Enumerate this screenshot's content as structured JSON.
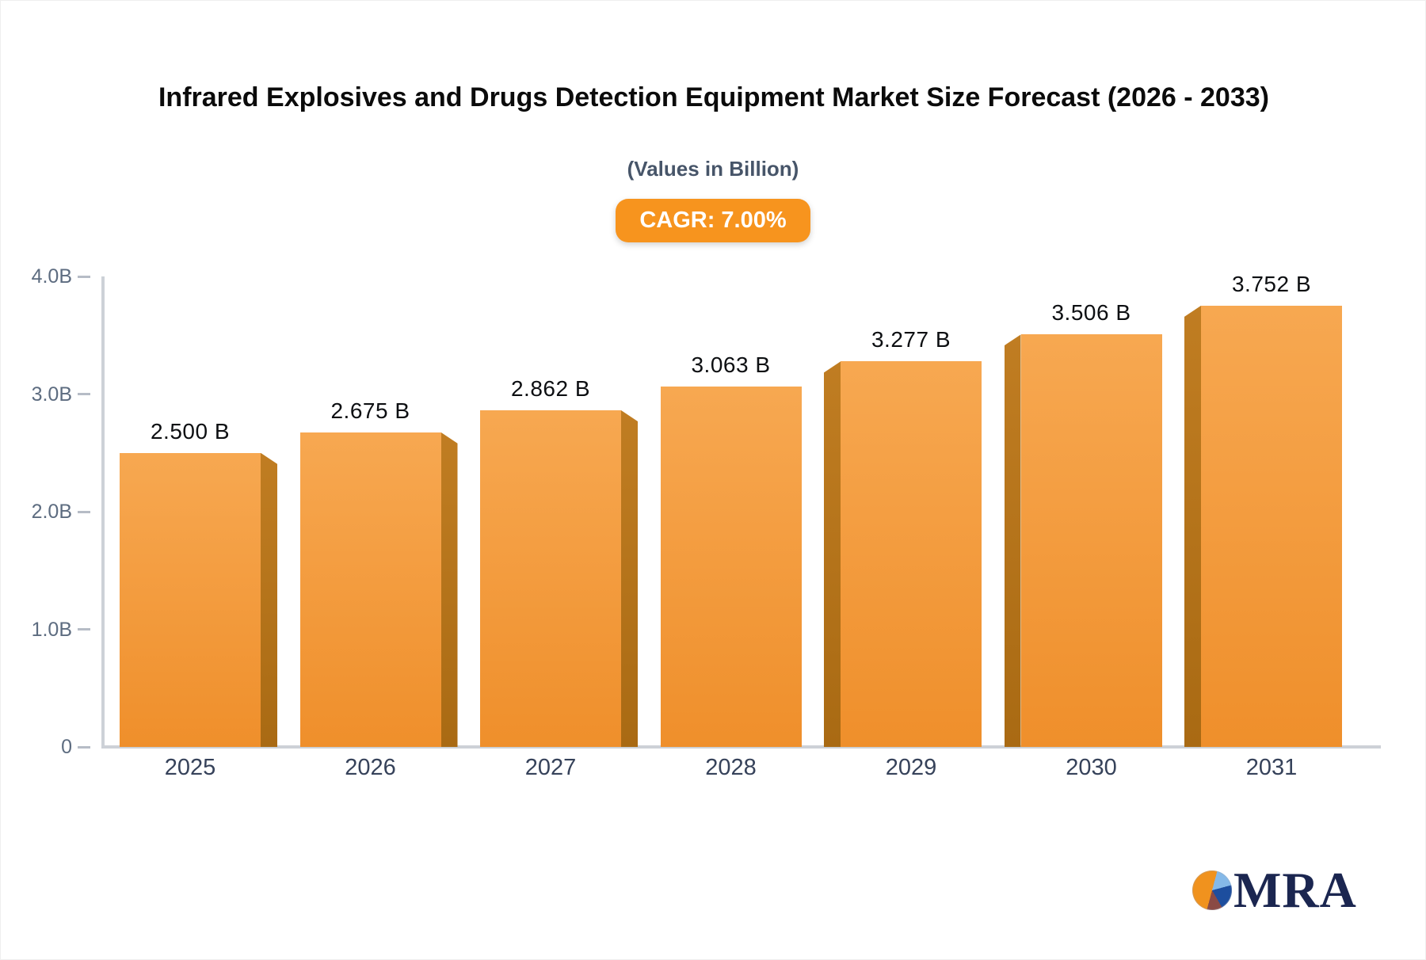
{
  "header": {
    "title": "Infrared Explosives and Drugs Detection Equipment Market Size Forecast (2026 - 2033)",
    "subtitle": "(Values in Billion)",
    "cagr_label": "CAGR: 7.00%"
  },
  "logo": {
    "text": "MRA"
  },
  "colors": {
    "bar_face_top": "#f7a851",
    "bar_face_bottom": "#ef8f2b",
    "bar_side": "#b0701c",
    "badge_bg": "#f7941e",
    "badge_text": "#ffffff",
    "axis_line": "#cdd1d7",
    "y_tick_label": "#5d6c80",
    "x_category_label": "#36425a",
    "value_label": "#0d0f12",
    "subtitle": "#475569",
    "logo_navy": "#1b2650",
    "logo_orange": "#f0921e",
    "logo_lightblue": "#85b9e8",
    "logo_darkblue": "#1d4e9e",
    "logo_maroon": "#8a4a45"
  },
  "chart_data": {
    "type": "bar",
    "title": "Infrared Explosives and Drugs Detection Equipment Market Size Forecast (2026 - 2033)",
    "subtitle": "(Values in Billion)",
    "cagr": "7.00%",
    "unit": "Billion USD",
    "categories": [
      "2025",
      "2026",
      "2027",
      "2028",
      "2029",
      "2030",
      "2031"
    ],
    "values": [
      2.5,
      2.675,
      2.862,
      3.063,
      3.277,
      3.506,
      3.752
    ],
    "value_labels": [
      "2.500 B",
      "2.675 B",
      "2.862 B",
      "3.063 B",
      "3.277 B",
      "3.506 B",
      "3.752 B"
    ],
    "y_ticks": [
      {
        "label": "4.0B",
        "value": 4.0
      },
      {
        "label": "3.0B",
        "value": 3.0
      },
      {
        "label": "2.0B",
        "value": 2.0
      },
      {
        "label": "1.0B",
        "value": 1.0
      },
      {
        "label": "0",
        "value": 0
      }
    ],
    "ylim": [
      0,
      4.0
    ],
    "xlabel": "",
    "ylabel": "",
    "grid": false,
    "legend": "none",
    "bar_style": "3d-perspective-orange"
  }
}
